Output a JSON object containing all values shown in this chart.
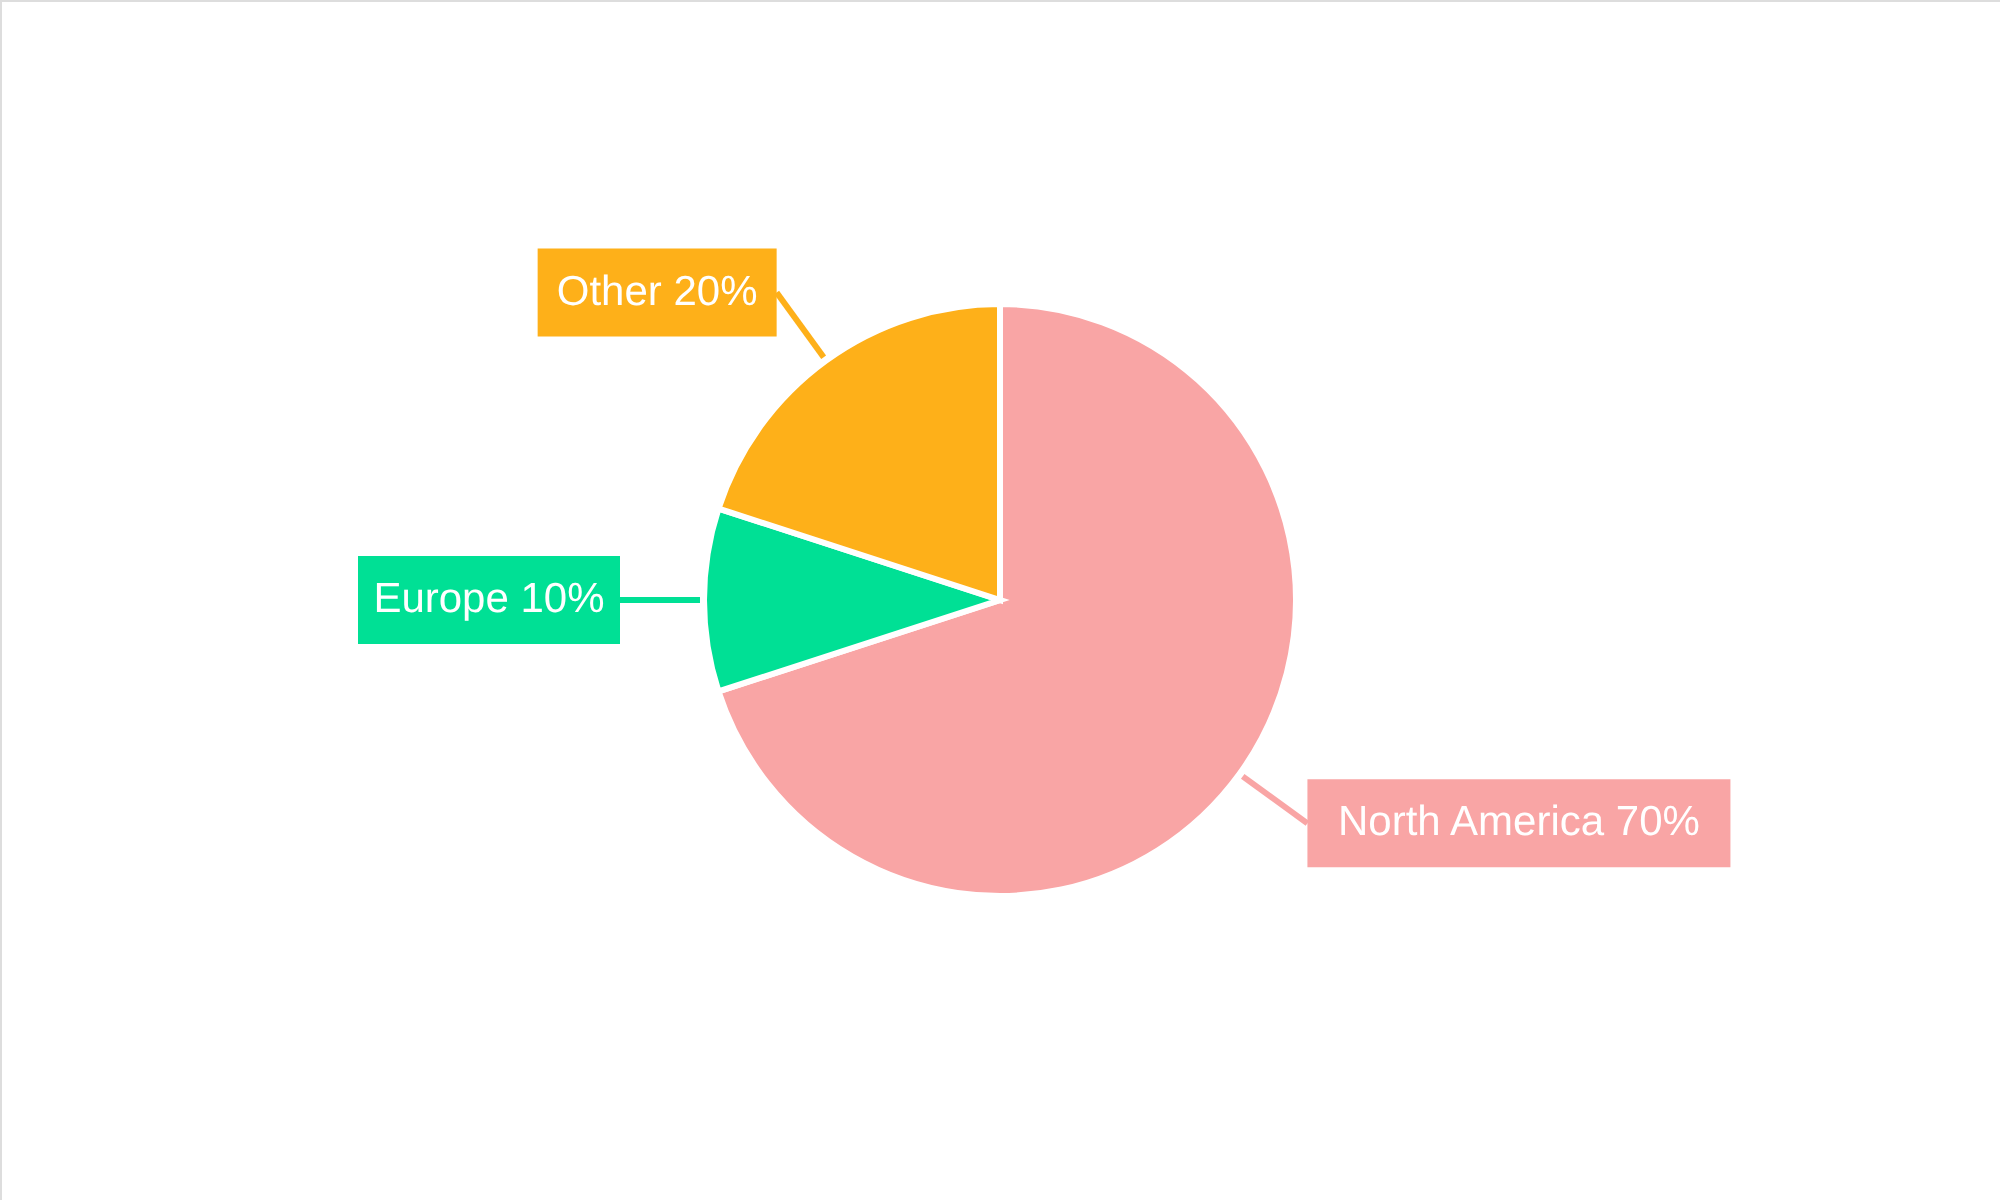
{
  "chart_data": {
    "type": "pie",
    "categories": [
      "North America",
      "Europe",
      "Other"
    ],
    "values": [
      70,
      10,
      20
    ],
    "value_labels": [
      "70%",
      "10%",
      "20%"
    ],
    "colors": [
      "#f9a5a5",
      "#00e095",
      "#feb019"
    ]
  }
}
